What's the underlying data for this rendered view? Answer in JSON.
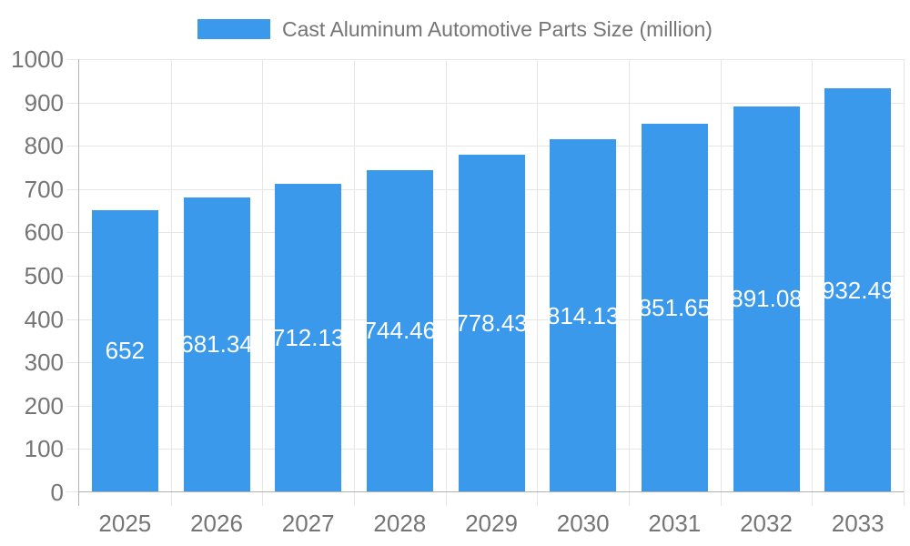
{
  "chart_data": {
    "type": "bar",
    "title": "",
    "legend": "Cast Aluminum Automotive Parts Size (million)",
    "legend_position": "top-center",
    "categories": [
      "2025",
      "2026",
      "2027",
      "2028",
      "2029",
      "2030",
      "2031",
      "2032",
      "2033"
    ],
    "values": [
      652,
      681.34,
      712.13,
      744.46,
      778.43,
      814.13,
      851.65,
      891.08,
      932.49
    ],
    "value_labels": [
      "652",
      "681.34",
      "712.13",
      "744.46",
      "778.43",
      "814.13",
      "851.65",
      "891.08",
      "932.49"
    ],
    "xlabel": "",
    "ylabel": "",
    "ylim": [
      0,
      1000
    ],
    "ytick_step": 100,
    "yticks": [
      0,
      100,
      200,
      300,
      400,
      500,
      600,
      700,
      800,
      900,
      1000
    ],
    "grid": true,
    "colors": {
      "bar": "#3B99EC",
      "bar_label": "#FFFFFF",
      "axis_text": "#757575",
      "grid_line": "#E6E6E6",
      "axis_line": "#B3B3B3"
    }
  }
}
